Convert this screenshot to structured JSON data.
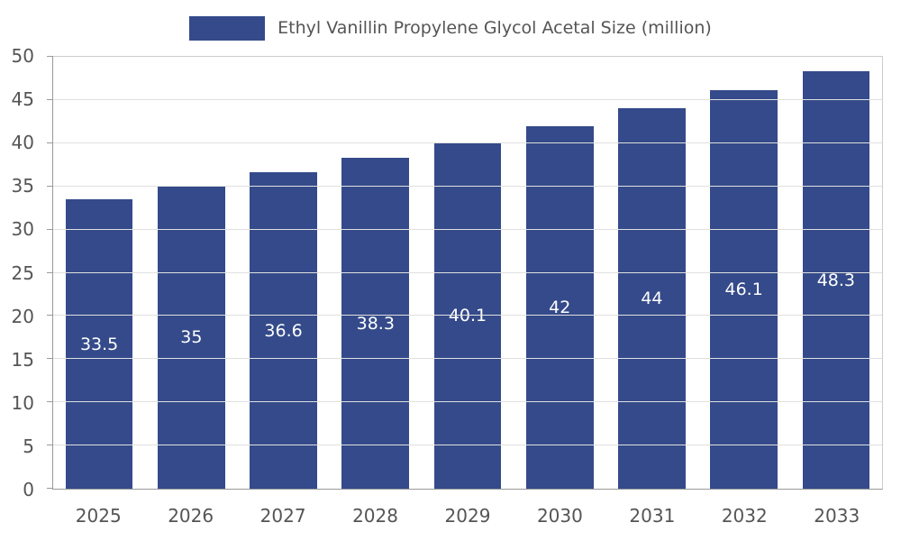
{
  "legend": {
    "label": "Ethyl Vanillin Propylene Glycol Acetal Size (million)"
  },
  "chart_data": {
    "type": "bar",
    "title": "Ethyl Vanillin Propylene Glycol Acetal Size (million)",
    "categories": [
      "2025",
      "2026",
      "2027",
      "2028",
      "2029",
      "2030",
      "2031",
      "2032",
      "2033"
    ],
    "values": [
      33.5,
      35,
      36.6,
      38.3,
      40.1,
      42,
      44,
      46.1,
      48.3
    ],
    "value_labels": [
      "33.5",
      "35",
      "36.6",
      "38.3",
      "40.1",
      "42",
      "44",
      "46.1",
      "48.3"
    ],
    "xlabel": "",
    "ylabel": "",
    "ylim": [
      0,
      50
    ],
    "ytick_step": 5,
    "grid": true,
    "legend_position": "top",
    "colors": {
      "bar": "#344a8a",
      "value_label": "#ffffff",
      "axis_text": "#555555",
      "gridline": "#e0e0e0",
      "axis_line": "#999999"
    }
  }
}
